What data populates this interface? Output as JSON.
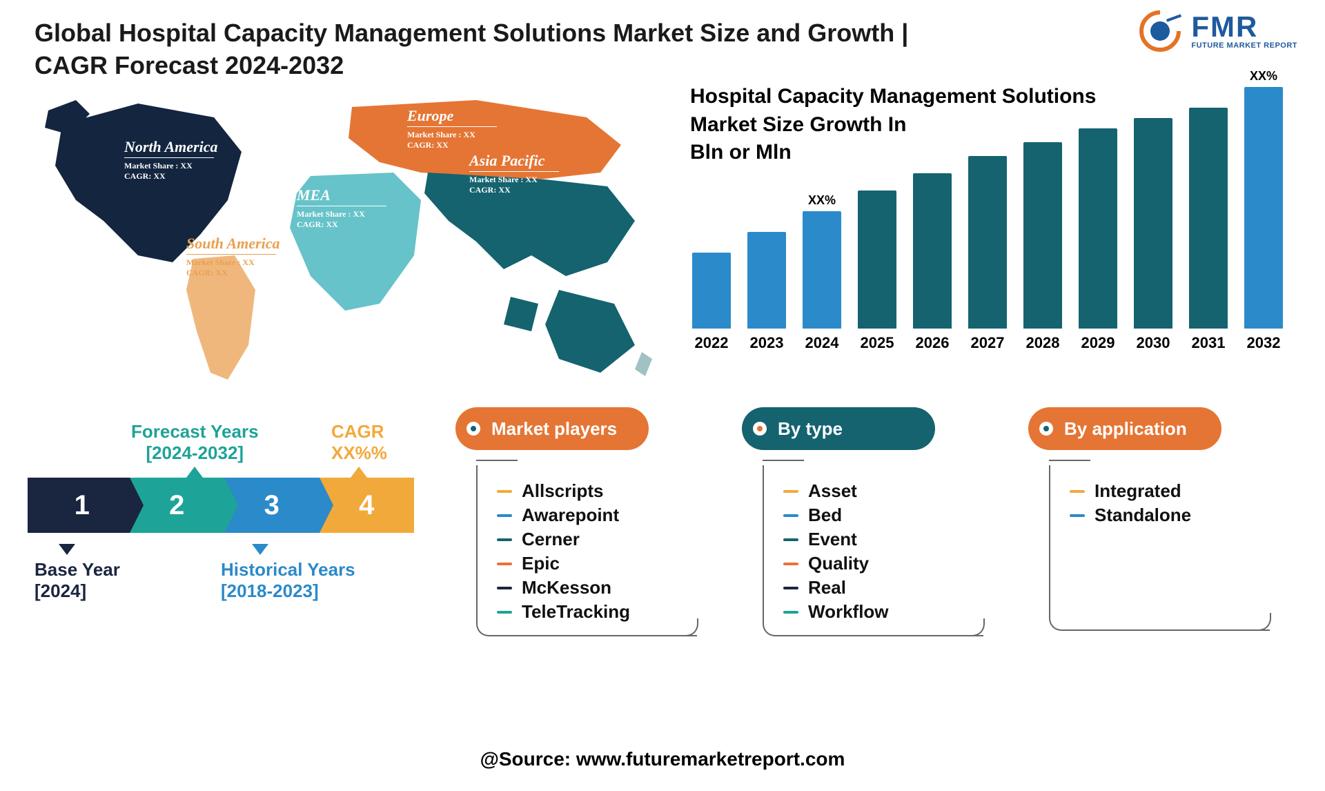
{
  "title_line1": "Global Hospital Capacity Management Solutions Market Size and Growth |",
  "title_line2": " CAGR Forecast 2024-2032",
  "logo": {
    "fmr": "FMR",
    "sub": "FUTURE MARKET REPORT",
    "accent": "#e57225",
    "blue": "#1e5a9e"
  },
  "map": {
    "regions": [
      {
        "key": "na",
        "name": "North America",
        "share": "Market Share : XX",
        "cagr": "CAGR: XX",
        "color": "#13253f"
      },
      {
        "key": "sa",
        "name": "South America",
        "share": "Market Share : XX",
        "cagr": "CAGR: XX",
        "color": "#f0b77c"
      },
      {
        "key": "eu",
        "name": "Europe",
        "share": "Market Share : XX",
        "cagr": "CAGR: XX",
        "color": "#e57534"
      },
      {
        "key": "mea",
        "name": "MEA",
        "share": "Market Share : XX",
        "cagr": "CAGR: XX",
        "color": "#66c3c9"
      },
      {
        "key": "ap",
        "name": "Asia Pacific",
        "share": "Market Share : XX",
        "cagr": "CAGR: XX",
        "color": "#14636f"
      }
    ]
  },
  "chart": {
    "type": "bar",
    "title_l1": "Hospital Capacity Management Solutions",
    "title_l2": "Market Size Growth In",
    "title_l3": "Bln or Mln",
    "years": [
      "2022",
      "2023",
      "2024",
      "2025",
      "2026",
      "2027",
      "2028",
      "2029",
      "2030",
      "2031",
      "2032"
    ],
    "heights": [
      110,
      140,
      170,
      200,
      225,
      250,
      270,
      290,
      305,
      320,
      350
    ],
    "colors": [
      "#2b8ac9",
      "#2b8ac9",
      "#2b8ac9",
      "#14636f",
      "#14636f",
      "#14636f",
      "#14636f",
      "#14636f",
      "#14636f",
      "#14636f",
      "#2b8ac9"
    ],
    "label_first": "XX%",
    "label_last": "XX%",
    "label_fontsize": 18,
    "year_fontsize": 22,
    "background": "#ffffff"
  },
  "timeline": {
    "forecast_label": "Forecast Years",
    "forecast_range": "[2024-2032]",
    "cagr_label": "CAGR",
    "cagr_value": "XX%%",
    "base_label": "Base Year",
    "base_range": "[2024]",
    "hist_label": "Historical Years",
    "hist_range": "[2018-2023]",
    "segments": [
      {
        "n": "1",
        "color": "#1a2540"
      },
      {
        "n": "2",
        "color": "#1ea398"
      },
      {
        "n": "3",
        "color": "#2b8ac9"
      },
      {
        "n": "4",
        "color": "#f2a93b"
      }
    ]
  },
  "pills": {
    "market_players": {
      "label": "Market players",
      "pill_color": "#e57534",
      "items": [
        {
          "t": "Allscripts",
          "c": "#f2a93b"
        },
        {
          "t": "Awarepoint",
          "c": "#2b8ac9"
        },
        {
          "t": "Cerner",
          "c": "#14636f"
        },
        {
          "t": "Epic",
          "c": "#e57534"
        },
        {
          "t": "McKesson",
          "c": "#1a2540"
        },
        {
          "t": "TeleTracking",
          "c": "#1ea398"
        }
      ]
    },
    "by_type": {
      "label": "By type",
      "pill_color": "#14636f",
      "items": [
        {
          "t": "Asset",
          "c": "#f2a93b"
        },
        {
          "t": "Bed",
          "c": "#2b8ac9"
        },
        {
          "t": "Event",
          "c": "#14636f"
        },
        {
          "t": "Quality",
          "c": "#e57534"
        },
        {
          "t": "Real",
          "c": "#1a2540"
        },
        {
          "t": "Workflow",
          "c": "#1ea398"
        }
      ]
    },
    "by_application": {
      "label": "By application",
      "pill_color": "#e57534",
      "items": [
        {
          "t": "Integrated",
          "c": "#f2a93b"
        },
        {
          "t": "Standalone",
          "c": "#2b8ac9"
        }
      ]
    }
  },
  "source": "@Source: www.futuremarketreport.com"
}
